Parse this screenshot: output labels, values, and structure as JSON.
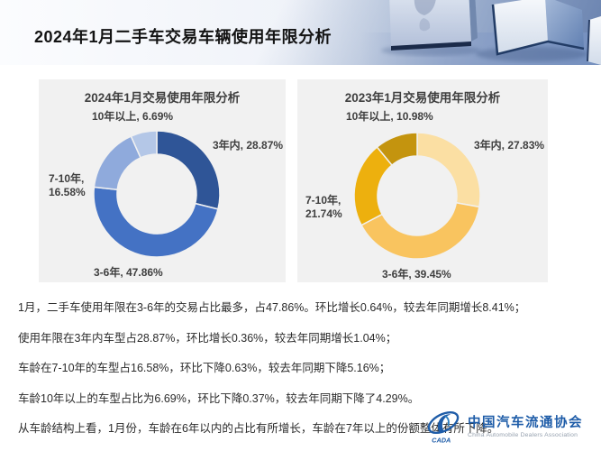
{
  "header": {
    "title": "2024年1月二手车交易车辆使用年限分析"
  },
  "charts": [
    {
      "title": "2024年1月交易使用年限分析",
      "labels": {
        "top": "10年以上, 6.69%",
        "right": "3年内, 28.87%",
        "left1": "7-10年,",
        "left2": "16.58%",
        "bottom": "3-6年, 47.86%"
      }
    },
    {
      "title": "2023年1月交易使用年限分析",
      "labels": {
        "top": "10年以上, 10.98%",
        "right": "3年内, 27.83%",
        "left1": "7-10年,",
        "left2": "21.74%",
        "bottom": "3-6年, 39.45%"
      }
    }
  ],
  "chart_data": [
    {
      "type": "pie",
      "subtype": "donut",
      "title": "2024年1月交易使用年限分析",
      "categories": [
        "3年内",
        "3-6年",
        "7-10年",
        "10年以上"
      ],
      "values": [
        28.87,
        47.86,
        16.58,
        6.69
      ],
      "unit": "%",
      "colors": [
        "#2F5597",
        "#4472C4",
        "#8FAADC",
        "#B4C7E7"
      ],
      "start_angle": "top",
      "direction": "clockwise",
      "hole_ratio": 0.63,
      "legend": "none",
      "labels_position": "outside"
    },
    {
      "type": "pie",
      "subtype": "donut",
      "title": "2023年1月交易使用年限分析",
      "categories": [
        "3年内",
        "3-6年",
        "7-10年",
        "10年以上"
      ],
      "values": [
        27.83,
        39.45,
        21.74,
        10.98
      ],
      "unit": "%",
      "colors": [
        "#FBDFA3",
        "#F9C45F",
        "#EDB00E",
        "#C4940E"
      ],
      "start_angle": "top",
      "direction": "clockwise",
      "hole_ratio": 0.63,
      "legend": "none",
      "labels_position": "outside"
    }
  ],
  "notes": {
    "lines": [
      "1月，二手车使用年限在3-6年的交易占比最多，占47.86%。环比增长0.64%，较去年同期增长8.41%；",
      "使用年限在3年内车型占28.87%，环比增长0.36%，较去年同期增长1.04%；",
      "车龄在7-10年的车型占16.58%，环比下降0.63%，较去年同期下降5.16%；",
      "车龄10年以上的车型占比为6.69%，环比下降0.37%，较去年同期下降了4.29%。",
      "从车龄结构上看，1月份，车龄在6年以内的占比有所增长，车龄在7年以上的份额整体有所下降。"
    ]
  },
  "footer": {
    "org_cn": "中国汽车流通协会",
    "org_en": "China Automobile Dealers Association",
    "logo_mark": "CADA",
    "brand_color": "#1E5CA8"
  }
}
